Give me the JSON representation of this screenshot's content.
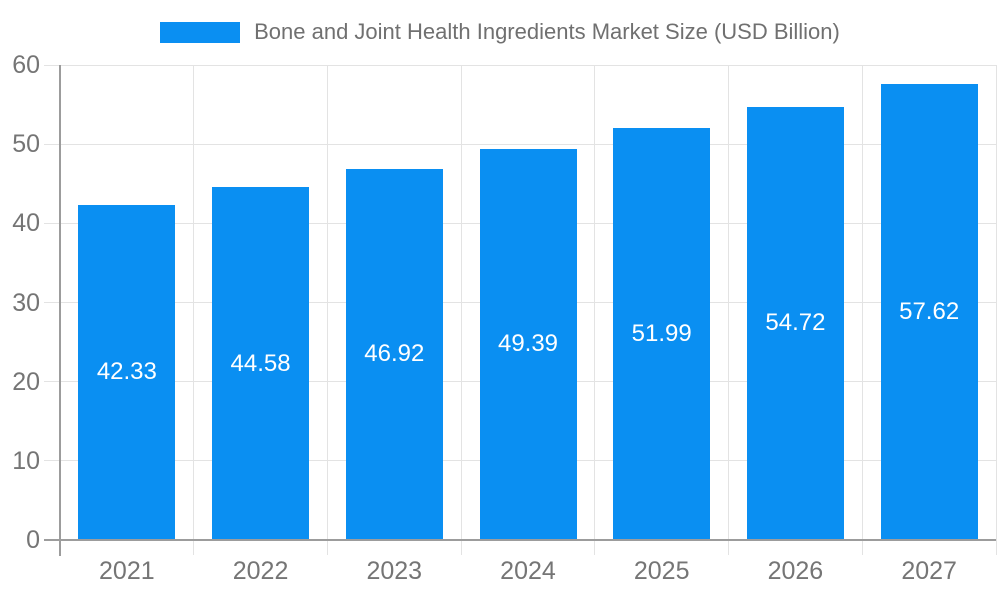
{
  "chart_data": {
    "type": "bar",
    "title": "Bone and Joint Health Ingredients Market Size (USD Billion)",
    "categories": [
      "2021",
      "2022",
      "2023",
      "2024",
      "2025",
      "2026",
      "2027"
    ],
    "values": [
      42.33,
      44.58,
      46.92,
      49.39,
      51.99,
      54.72,
      57.62
    ],
    "value_labels": [
      "42.33",
      "44.58",
      "46.92",
      "49.39",
      "51.99",
      "54.72",
      "57.62"
    ],
    "xlabel": "",
    "ylabel": "",
    "ylim": [
      0,
      60
    ],
    "yticks": [
      0,
      10,
      20,
      30,
      40,
      50,
      60
    ],
    "grid": true,
    "legend_position": "top",
    "colors": {
      "bar": "#0A8FF2",
      "value_label": "#FFFFFF",
      "tick_label": "#757575",
      "title": "#707070",
      "gridline": "#E3E3E3",
      "axis_line": "#9C9C9C",
      "background": "#FFFFFF"
    }
  }
}
